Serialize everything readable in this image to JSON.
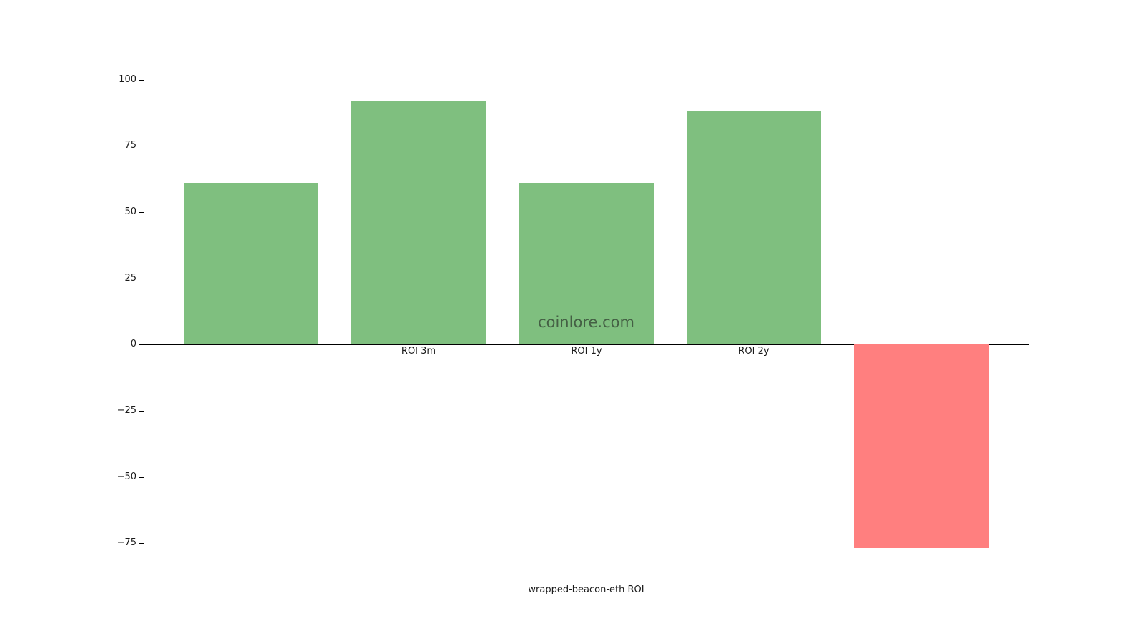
{
  "chart_data": {
    "type": "bar",
    "categories": [
      "",
      "ROI 3m",
      "ROI 1y",
      "ROI 2y",
      ""
    ],
    "values": [
      61,
      92,
      61,
      88,
      -77
    ],
    "positive_color": "#7fbf7f",
    "negative_color": "#ff7f7f",
    "yticks": [
      100,
      75,
      50,
      25,
      0,
      -25,
      -50,
      -75
    ],
    "ylim": [
      -85.45,
      100.45
    ],
    "xlabel": "wrapped-beacon-eth ROI",
    "ylabel": "",
    "grid": false,
    "legend_position": "none",
    "watermark": "coinlore.com",
    "axis_color": "#000000",
    "text_color": "#1a1a1a",
    "background_color": "#ffffff"
  }
}
